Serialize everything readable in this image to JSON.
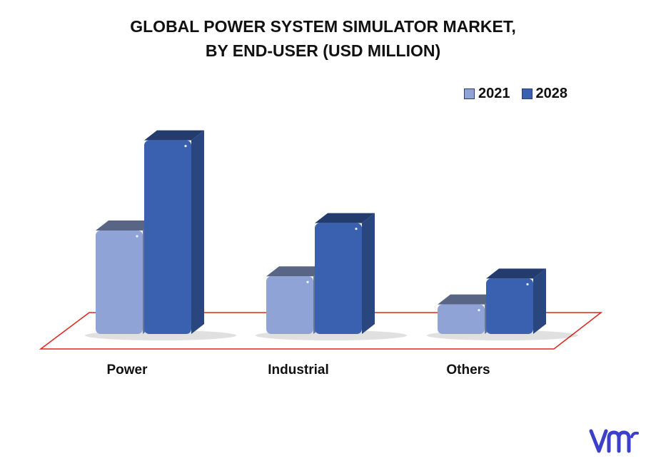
{
  "chart_data": {
    "type": "bar",
    "title_line1": "GLOBAL POWER SYSTEM SIMULATOR MARKET,",
    "title_line2": "BY END-USER (USD MILLION)",
    "categories": [
      "Power",
      "Industrial",
      "Others"
    ],
    "series": [
      {
        "name": "2021",
        "values": [
          140,
          78,
          40
        ],
        "color": "#8fa3d6"
      },
      {
        "name": "2028",
        "values": [
          262,
          150,
          75
        ],
        "color": "#3a61b0"
      }
    ],
    "ylim": [
      0,
      280
    ],
    "grid": false,
    "legend_position": "top-right",
    "floor_outline_color": "#e0241b"
  },
  "brand": {
    "logo_icon": "vmr-logo-icon",
    "logo_color": "#3b3fc9"
  }
}
